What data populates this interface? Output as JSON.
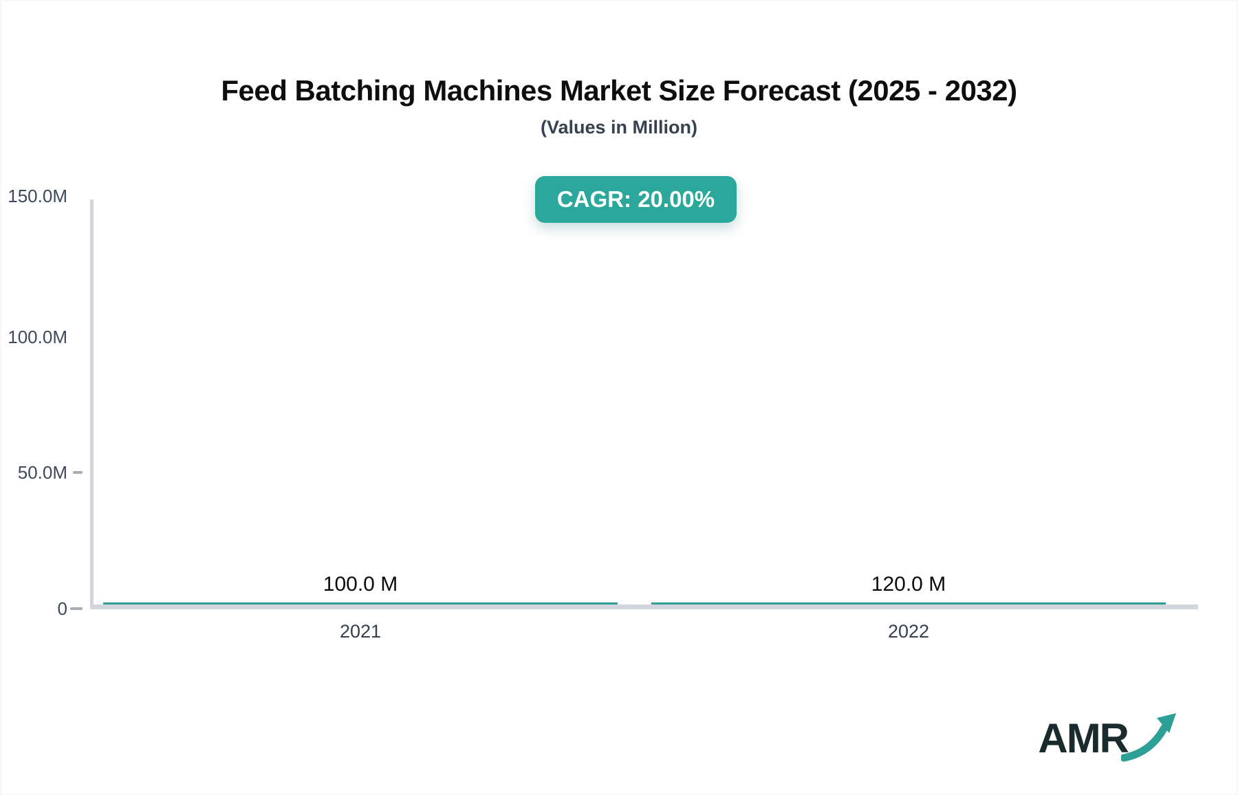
{
  "header": {
    "title": "Feed Batching Machines Market Size Forecast (2025 - 2032)",
    "subtitle": "(Values in Million)"
  },
  "badge": {
    "label": "CAGR: 20.00%",
    "bg_color": "#2ba79b",
    "text_color": "#ffffff"
  },
  "chart_data": {
    "type": "bar",
    "categories": [
      "2021",
      "2022"
    ],
    "values": [
      100.0,
      120.0
    ],
    "value_labels": [
      "100.0 M",
      "120.0 M"
    ],
    "title": "Feed Batching Machines Market Size Forecast (2025 - 2032)",
    "subtitle": "(Values in Million)",
    "xlabel": "",
    "ylabel": "",
    "ylim": [
      0,
      150
    ],
    "y_ticks": [
      "150.0M",
      "100.0M",
      "50.0M",
      "0"
    ],
    "grid": false,
    "legend": false,
    "bar_gradient_top": "#4db3aa",
    "bar_gradient_bottom": "#2aa79a",
    "bar_stroke": "#2e9e93",
    "axis_color": "#d2d5dc"
  },
  "logo": {
    "text": "AMR",
    "text_color": "#1a2b2e",
    "arrow_color": "#2d9f96"
  }
}
